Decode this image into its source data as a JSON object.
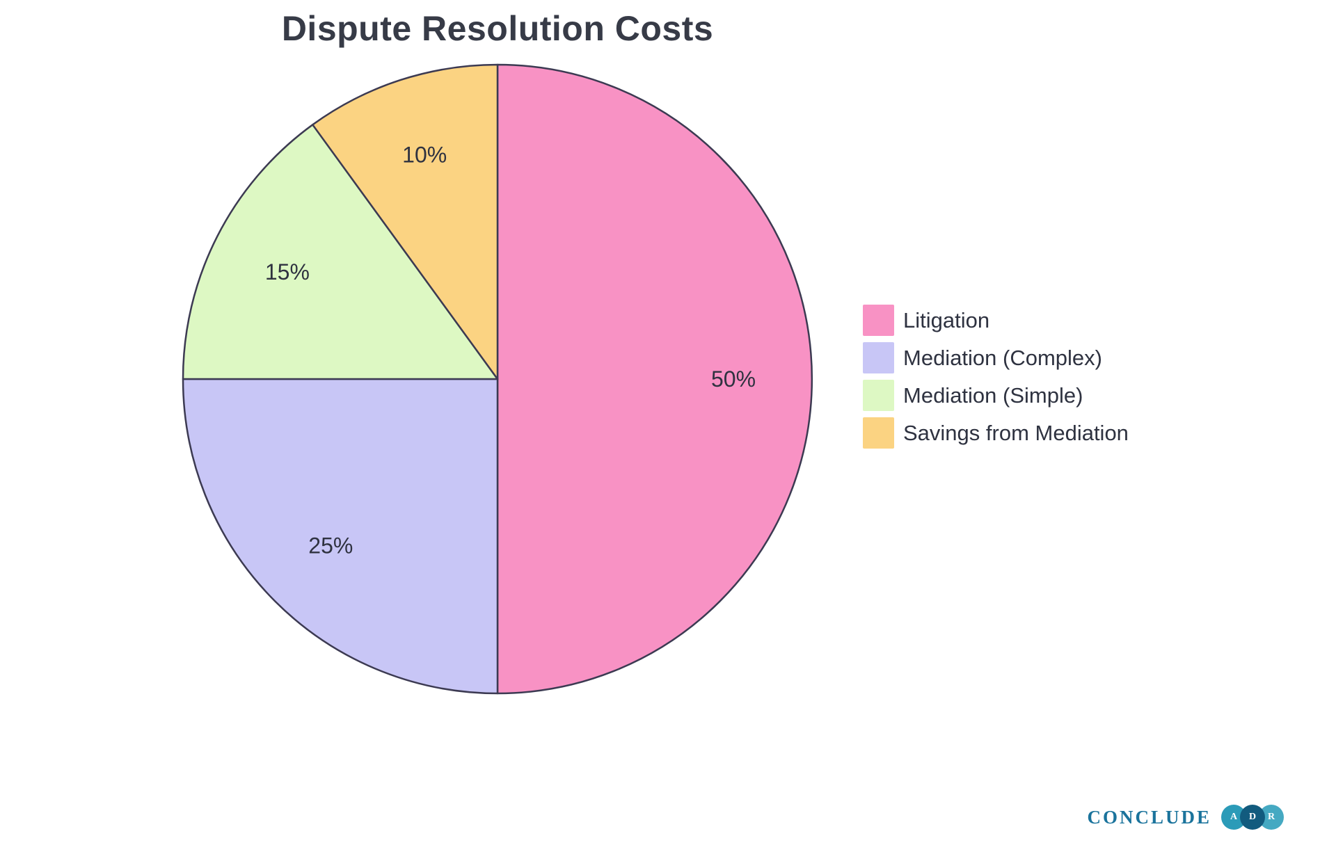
{
  "title": "Dispute Resolution Costs",
  "chart_data": {
    "type": "pie",
    "title": "Dispute Resolution Costs",
    "labels": [
      "Litigation",
      "Mediation (Complex)",
      "Mediation (Simple)",
      "Savings from Mediation"
    ],
    "values": [
      50,
      25,
      15,
      10
    ],
    "percent_labels": [
      "50%",
      "25%",
      "15%",
      "10%"
    ],
    "colors": [
      "#F892C4",
      "#C8C6F6",
      "#DDF8C3",
      "#FBD382"
    ],
    "slice_border_color": "#3C3A52",
    "start_angle_deg": 0,
    "direction": "clockwise",
    "legend_position": "right",
    "label_radius_fraction": 0.75
  },
  "logo": {
    "wordmark": "CONCLUDE",
    "wordmark_color": "#1A739C",
    "badges": [
      {
        "letter": "A",
        "color": "#2B9BB8"
      },
      {
        "letter": "D",
        "color": "#125B7E"
      },
      {
        "letter": "R",
        "color": "#45A9C2"
      }
    ]
  }
}
